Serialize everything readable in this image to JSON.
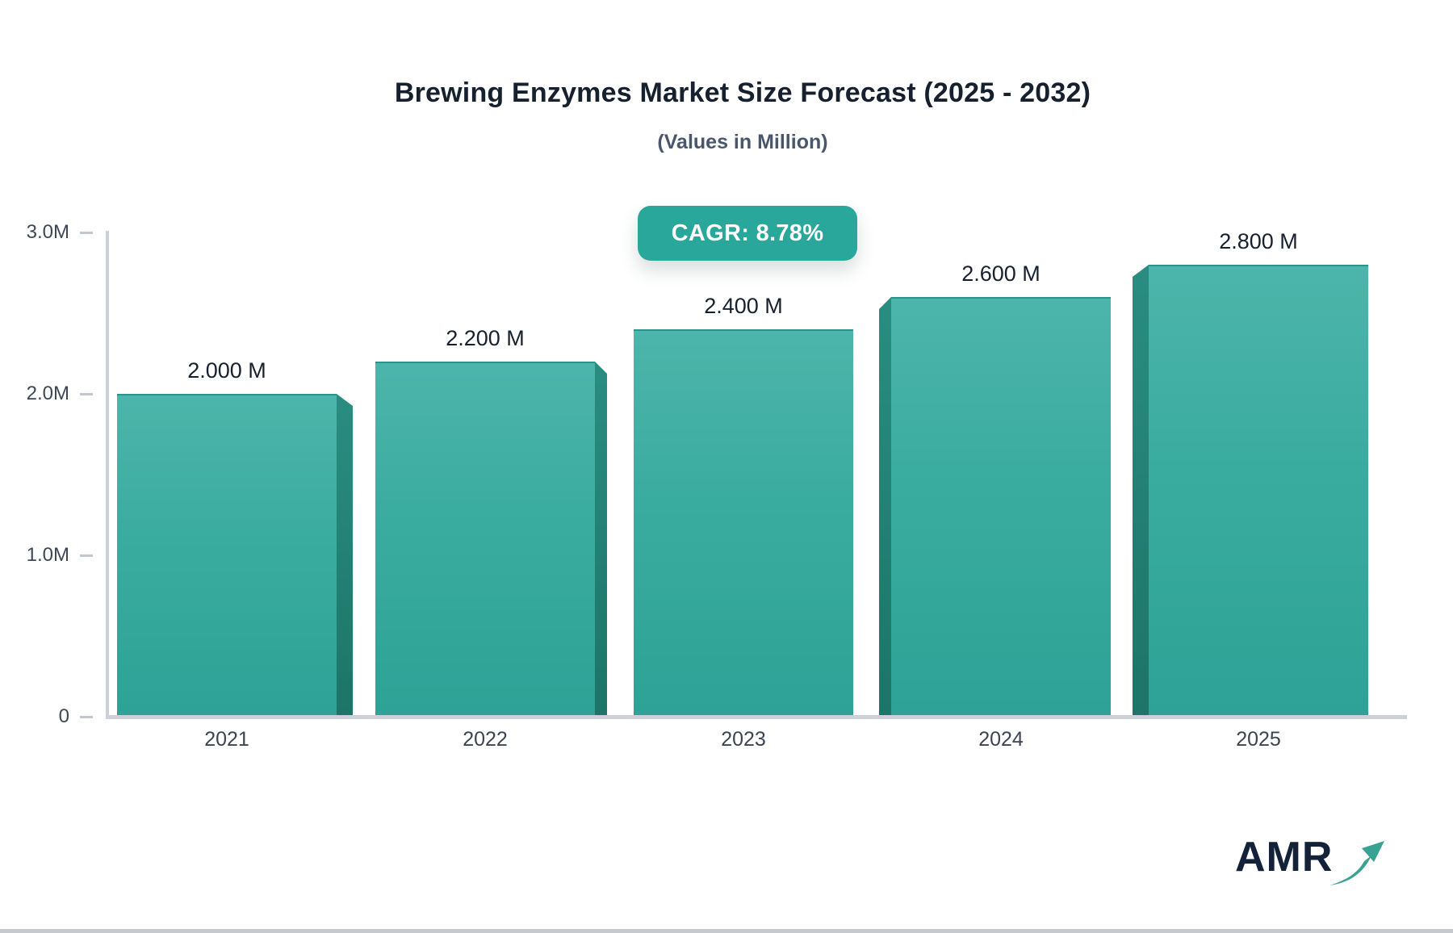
{
  "chart": {
    "title": "Brewing Enzymes Market Size Forecast (2025 - 2032)",
    "subtitle": "(Values in Million)",
    "cagr_badge": "CAGR: 8.78%"
  },
  "chart_data": {
    "type": "bar",
    "title": "Brewing Enzymes Market Size Forecast (2025 - 2032)",
    "subtitle": "(Values in Million)",
    "annotation": "CAGR: 8.78%",
    "categories": [
      "2021",
      "2022",
      "2023",
      "2024",
      "2025"
    ],
    "values": [
      2.0,
      2.2,
      2.4,
      2.6,
      2.8
    ],
    "unit": "Million",
    "bar_labels": [
      "2.000 M",
      "2.200 M",
      "2.400 M",
      "2.600 M",
      "2.800 M"
    ],
    "ylabel": "",
    "xlabel": "",
    "y_tick_labels": [
      "0",
      "1.0M",
      "2.0M",
      "3.0M"
    ],
    "y_tick_values": [
      0,
      1.0,
      2.0,
      3.0
    ],
    "ylim": [
      0,
      3.0
    ],
    "grid": false,
    "legend": false,
    "colors": {
      "bar_front_top": "#4db5ab",
      "bar_front_bottom": "#2ea296",
      "bar_side_dark": "#1d7468",
      "badge_background": "#29a79a",
      "axis_line": "#ccd1d9",
      "title_text": "#16202e",
      "subtitle_text": "#49566b",
      "logo_navy": "#132238",
      "logo_teal": "#3aa293"
    }
  },
  "logo": {
    "text": "AMR"
  }
}
